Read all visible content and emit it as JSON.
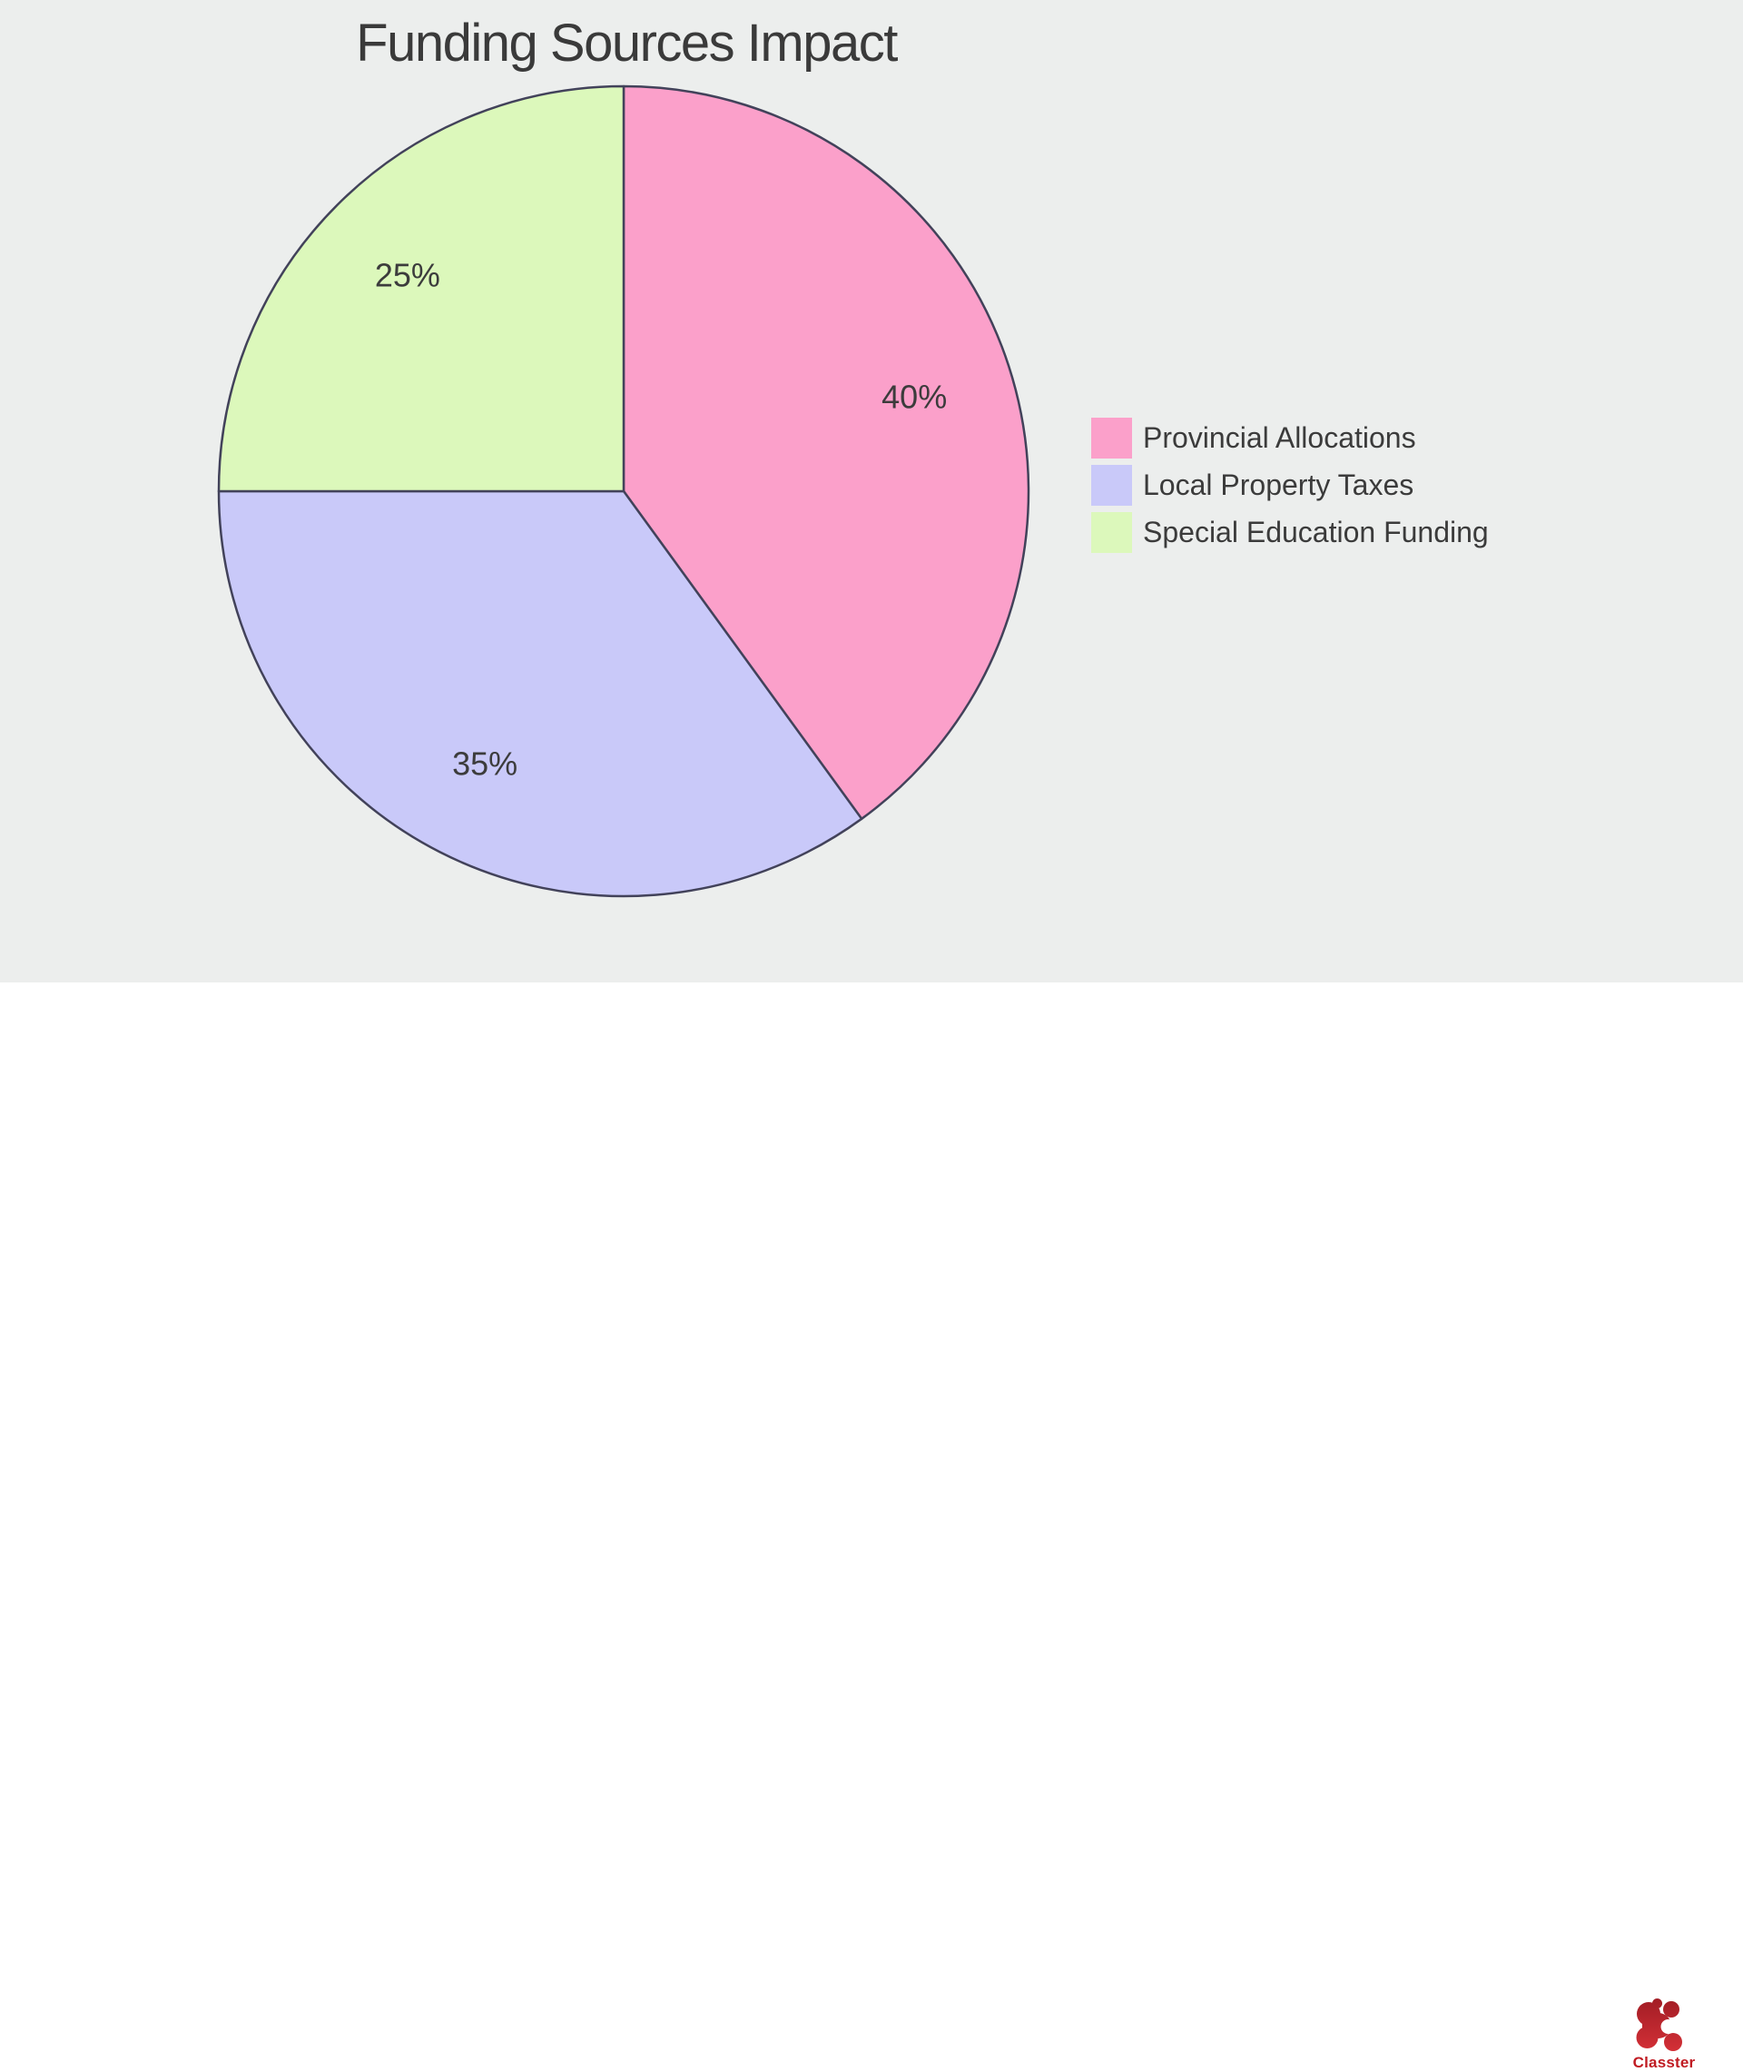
{
  "page": {
    "background": "#ECEEED",
    "footer_background": "#FFFFFF"
  },
  "chart_data": {
    "type": "pie",
    "title": "Funding Sources Impact",
    "labels": [
      "Provincial Allocations",
      "Local Property Taxes",
      "Special Education Funding"
    ],
    "values": [
      40,
      35,
      25
    ],
    "value_labels": [
      "40%",
      "35%",
      "25%"
    ],
    "unit": "%",
    "colors": [
      "#FBA0CA",
      "#C9C9F9",
      "#DCF8BB"
    ],
    "stroke_color": "#42425A",
    "slice_label_color": "#3C3C3C",
    "title_color": "#3A3A3A",
    "legend_text_color": "#3B3B3B",
    "start_angle_deg": 0,
    "direction": "clockwise",
    "legend_position": "right",
    "grid": false
  },
  "branding": {
    "logo_text": "Classter",
    "logo_color": "#C01B22",
    "logo_red_dark": "#A11D25",
    "logo_red_bright": "#D22F36"
  }
}
